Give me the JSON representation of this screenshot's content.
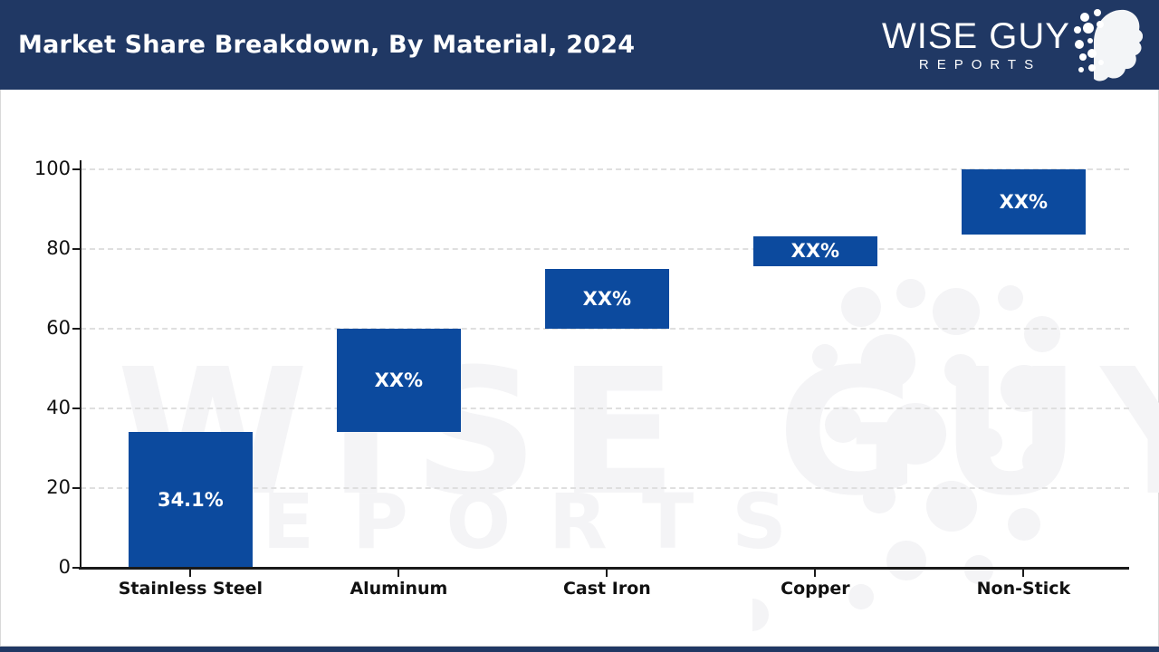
{
  "header": {
    "title": "Market Share Breakdown, By Material, 2024",
    "logo": {
      "line1": "WISE GUY",
      "line2": "REPORTS"
    }
  },
  "watermark": {
    "line1": "WISE GUY",
    "line2": "REPORTS"
  },
  "colors": {
    "header_bg": "#203864",
    "bar": "#0c4a9e",
    "bar_label": "#ffffff",
    "axis": "#1a1a1a",
    "gridline": "#dfdfdf",
    "footer_bg": "#203864"
  },
  "chart_data": {
    "type": "bar",
    "variant": "waterfall-floating-bars",
    "title": "Market Share Breakdown, By Material, 2024",
    "xlabel": "",
    "ylabel": "",
    "categories": [
      "Stainless Steel",
      "Aluminum",
      "Cast Iron",
      "Copper",
      "Non-Stick"
    ],
    "segments": [
      {
        "category": "Stainless Steel",
        "start": 0,
        "end": 34.1,
        "label": "34.1%"
      },
      {
        "category": "Aluminum",
        "start": 34.1,
        "end": 60,
        "label": "XX%"
      },
      {
        "category": "Cast Iron",
        "start": 60,
        "end": 75,
        "label": "XX%"
      },
      {
        "category": "Copper",
        "start": 75.7,
        "end": 83.2,
        "label": "XX%"
      },
      {
        "category": "Non-Stick",
        "start": 83.6,
        "end": 100,
        "label": "XX%"
      }
    ],
    "yticks": [
      0,
      20,
      40,
      60,
      80,
      100
    ],
    "ylim": [
      0,
      102.5
    ],
    "grid": "horizontal dashed",
    "legend": "none"
  }
}
